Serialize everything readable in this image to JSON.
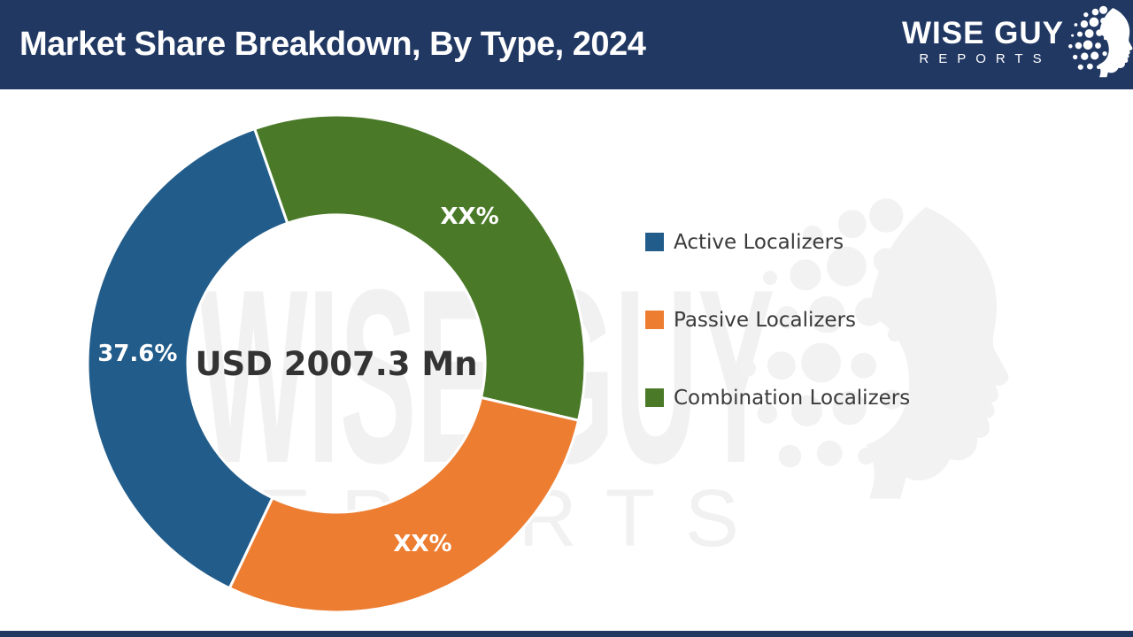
{
  "header": {
    "title": "Market Share Breakdown, By Type, 2024",
    "logo": {
      "name": "WISE GUY",
      "subname": "REPORTS"
    },
    "bar_color": "#213863"
  },
  "chart_data": {
    "type": "pie",
    "subtype": "donut",
    "title": "Market Share Breakdown, By Type, 2024",
    "center_label": "USD 2007.3 Mn",
    "start_angle_deg": -19.2,
    "legend_position": "right",
    "segments": [
      {
        "label": "Combination Localizers",
        "value_pct": 34.0,
        "display_label": "XX%",
        "color": "#4a7a28"
      },
      {
        "label": "Passive Localizers",
        "value_pct": 28.4,
        "display_label": "XX%",
        "color": "#ed7d31"
      },
      {
        "label": "Active Localizers",
        "value_pct": 37.6,
        "display_label": "37.6%",
        "color": "#215c8a"
      }
    ]
  },
  "legend": {
    "items": [
      {
        "label": "Active Localizers",
        "color": "#215c8a"
      },
      {
        "label": "Passive Localizers",
        "color": "#ed7d31"
      },
      {
        "label": "Combination Localizers",
        "color": "#4a7a28"
      }
    ]
  },
  "watermark": {
    "line1": "WISE GUY",
    "line2": "REPORTS"
  }
}
